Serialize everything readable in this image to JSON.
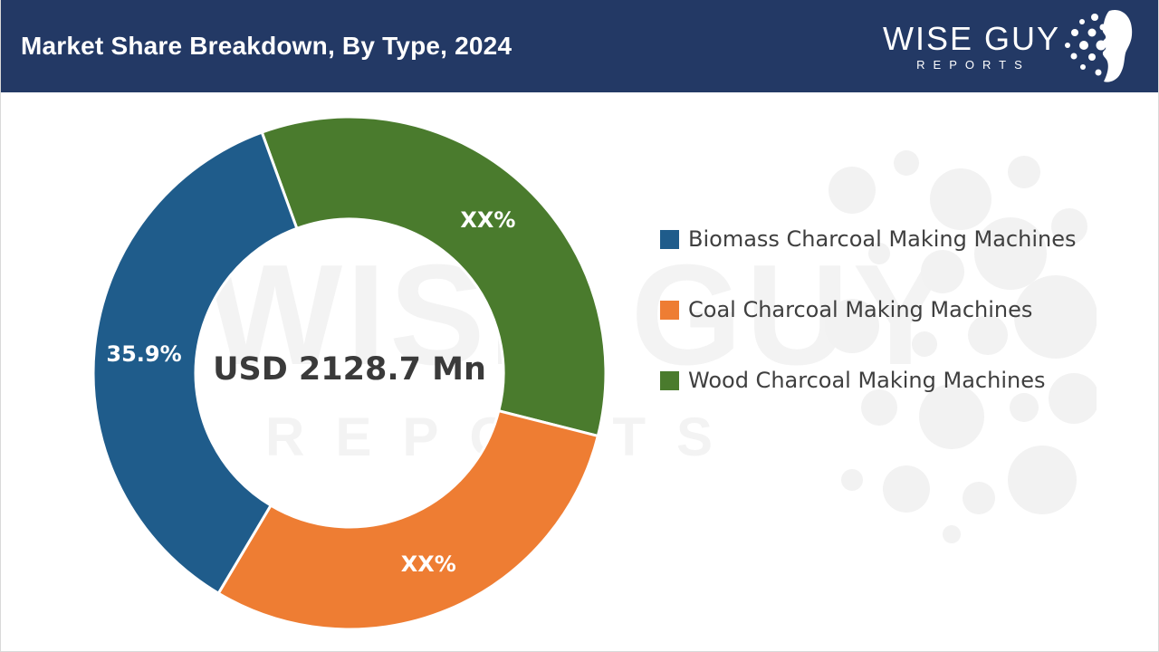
{
  "header": {
    "title": "Market Share Breakdown, By Type, 2024",
    "bg_color": "#233965",
    "logo": {
      "line1": "WISE GUY",
      "line2": "REPORTS"
    }
  },
  "watermark": {
    "line1": "WISE GUY",
    "line2": "REPORTS"
  },
  "chart_data": {
    "type": "pie",
    "subtype": "donut",
    "title": "Market Share Breakdown, By Type, 2024",
    "center_label": "USD 2128.7 Mn",
    "start_angle_deg": -20,
    "clockwise_visual_order": [
      "Wood Charcoal Making Machines",
      "Coal Charcoal Making Machines",
      "Biomass Charcoal Making Machines"
    ],
    "legend_position": "right",
    "segments": [
      {
        "name": "Biomass Charcoal Making Machines",
        "value": 35.9,
        "label": "35.9%",
        "color": "#1F5C8B"
      },
      {
        "name": "Coal Charcoal Making Machines",
        "value": 29.6,
        "label": "XX%",
        "color": "#EE7D33"
      },
      {
        "name": "Wood Charcoal Making Machines",
        "value": 34.5,
        "label": "XX%",
        "color": "#4A7B2D"
      }
    ]
  }
}
